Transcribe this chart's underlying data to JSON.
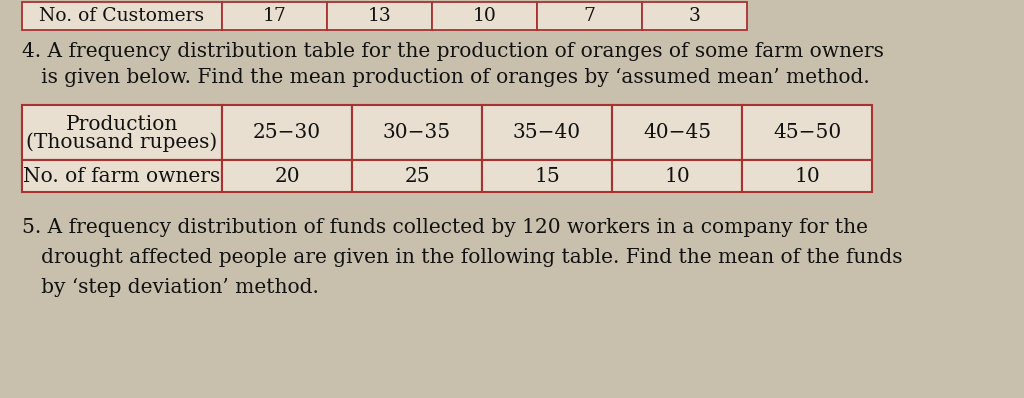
{
  "top_table": {
    "row_label": "No. of Customers",
    "values": [
      "17",
      "13",
      "10",
      "7",
      "3"
    ]
  },
  "question4_line1": "4. A frequency distribution table for the production of oranges of some farm owners",
  "question4_line2": "   is given below. Find the mean production of oranges by ‘assumed mean’ method.",
  "table4": {
    "header_col_line1": "Production",
    "header_col_line2": "(Thousand rupees)",
    "data_row_label": "No. of farm owners",
    "columns": [
      "25−30",
      "30−35",
      "35−40",
      "40−45",
      "45−50"
    ],
    "values": [
      "20",
      "25",
      "15",
      "10",
      "10"
    ]
  },
  "question5_line1": "5. A frequency distribution of funds collected by 120 workers in a company for the",
  "question5_line2": "   drought affected people are given in the following table. Find the mean of the funds",
  "question5_line3": "   by ‘step deviation’ method.",
  "border_color": "#a83232",
  "bg_color": "#c8bfac",
  "text_color": "#111111",
  "font_size": 14.5,
  "small_font_size": 13.5
}
